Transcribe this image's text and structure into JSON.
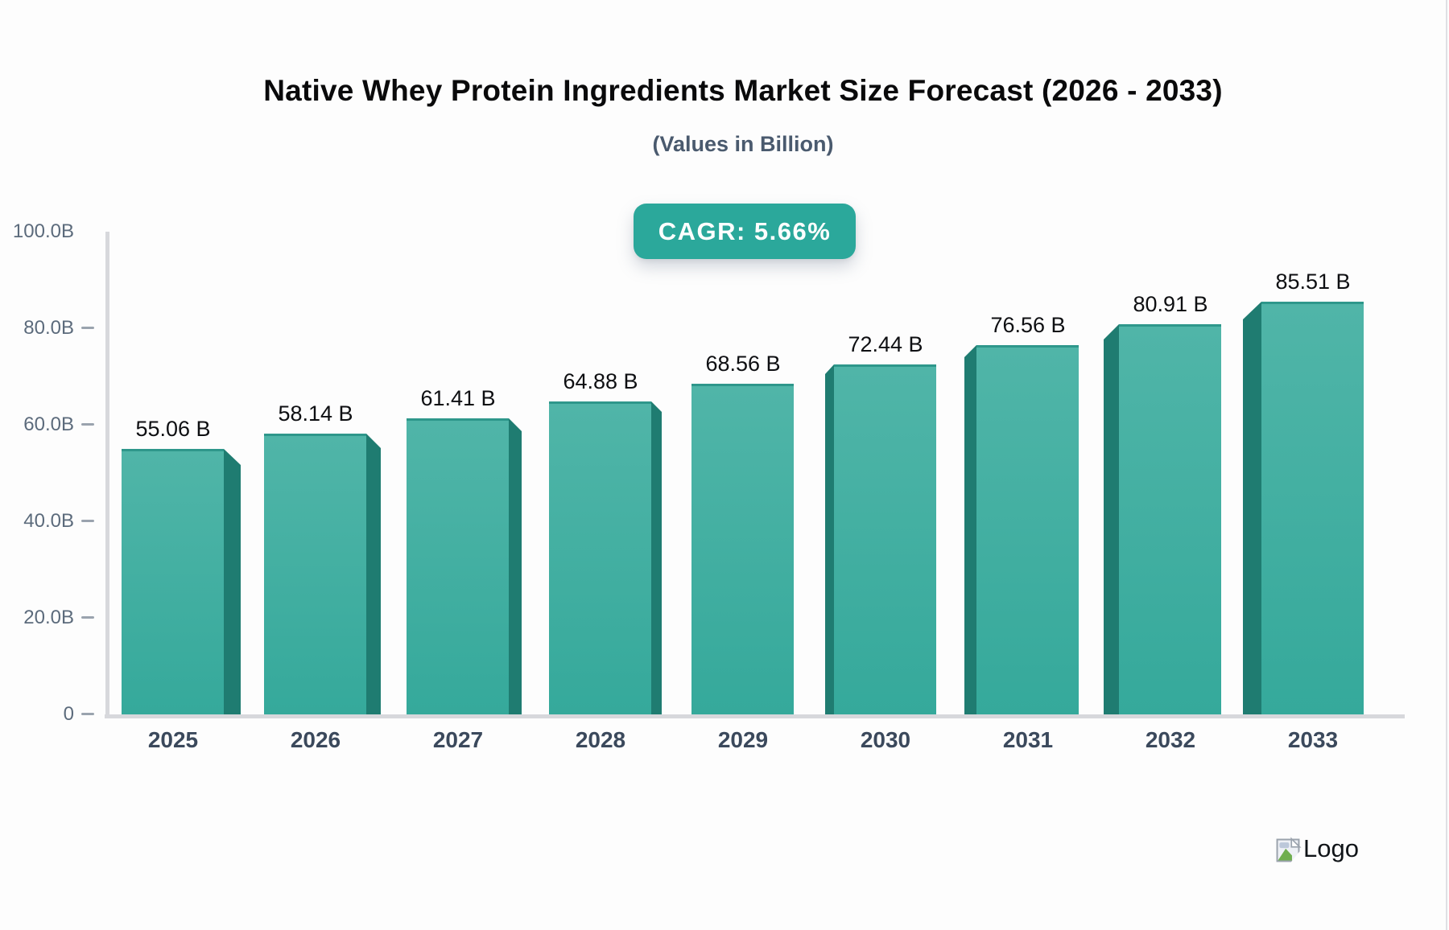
{
  "header": {
    "title": "Native Whey Protein Ingredients Market Size Forecast (2026 - 2033)",
    "subtitle": "(Values in Billion)"
  },
  "badge": {
    "label": "CAGR: 5.66%"
  },
  "chart_data": {
    "type": "bar",
    "title": "Native Whey Protein Ingredients Market Size Forecast (2026 - 2033)",
    "subtitle": "(Values in Billion)",
    "cagr": "5.66%",
    "categories": [
      "2025",
      "2026",
      "2027",
      "2028",
      "2029",
      "2030",
      "2031",
      "2032",
      "2033"
    ],
    "values": [
      55.06,
      58.14,
      61.41,
      64.88,
      68.56,
      72.44,
      76.56,
      80.91,
      85.51
    ],
    "value_labels": [
      "55.06 B",
      "58.14 B",
      "61.41 B",
      "64.88 B",
      "68.56 B",
      "72.44 B",
      "76.56 B",
      "80.91 B",
      "85.51 B"
    ],
    "unit": "B",
    "xlabel": "",
    "ylabel": "",
    "ylim": [
      0,
      100
    ],
    "y_ticks": [
      {
        "label": "100.0B",
        "value": 100
      },
      {
        "label": "80.0B",
        "value": 80
      },
      {
        "label": "60.0B",
        "value": 60
      },
      {
        "label": "40.0B",
        "value": 40
      },
      {
        "label": "20.0B",
        "value": 20
      },
      {
        "label": "0",
        "value": 0
      }
    ],
    "grid": false,
    "legend": false,
    "bar_style": "3d-teal"
  },
  "colors": {
    "bar_face_top": "#50b5a8",
    "bar_face_bottom": "#35a99b",
    "bar_side": "#1f7c71",
    "bar_top_edge": "#2e978b",
    "badge_bg": "#2ba89b",
    "badge_text": "#ffffff",
    "axis_line": "#d7d8dc",
    "tick_dash": "#9aa3ae",
    "y_tick_text": "#5c6b7c",
    "x_tick_text": "#3b495c",
    "value_text": "#0e0f12",
    "title_text": "#0a0a0b",
    "subtitle_text": "#4a5a6e"
  },
  "logo": {
    "alt": "Logo"
  }
}
